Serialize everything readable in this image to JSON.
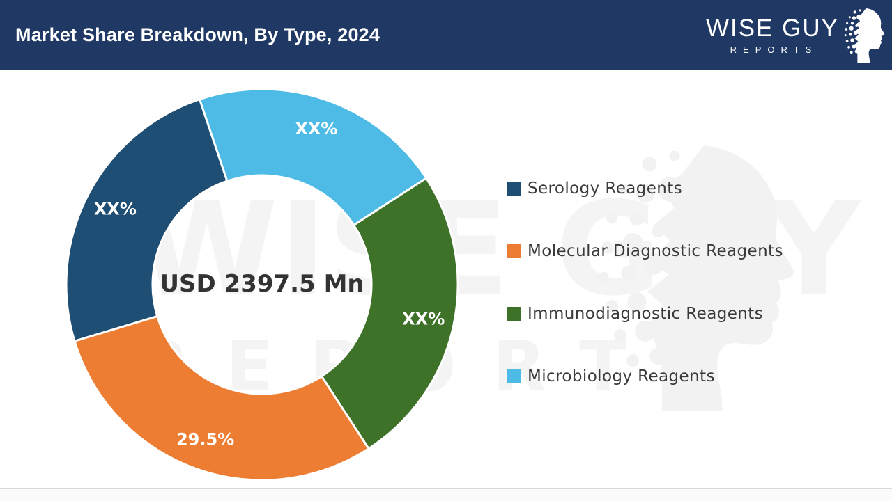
{
  "header": {
    "title": "Market Share Breakdown, By Type, 2024",
    "logo": {
      "line1": "WISE GUY",
      "line2": "REPORTS"
    }
  },
  "watermark": {
    "line1": "WISE GUY",
    "line2": "REPORTS"
  },
  "colors": {
    "header_bg": "#1f3864",
    "page_bg": "#ffffff",
    "watermark": "#f4f4f4",
    "legend_text": "#3a3a3a",
    "center_text": "#333333",
    "segment_divider": "#ffffff"
  },
  "chart_data": {
    "type": "pie",
    "variant": "donut",
    "title": "Market Share Breakdown, By Type, 2024",
    "center_label": "USD 2397.5 Mn",
    "rotation_deg": -18.6,
    "inner_radius_ratio": 0.56,
    "legend_position": "right",
    "series": [
      {
        "name": "Serology Reagents",
        "value": 24.5,
        "label": "XX%",
        "color": "#1f4e74"
      },
      {
        "name": "Molecular Diagnostic Reagents",
        "value": 29.5,
        "label": "29.5%",
        "color": "#ed7d33"
      },
      {
        "name": "Immunodiagnostic Reagents",
        "value": 25.0,
        "label": "XX%",
        "color": "#3f7229"
      },
      {
        "name": "Microbiology Reagents",
        "value": 21.0,
        "label": "XX%",
        "color": "#4dbbe5"
      }
    ]
  }
}
